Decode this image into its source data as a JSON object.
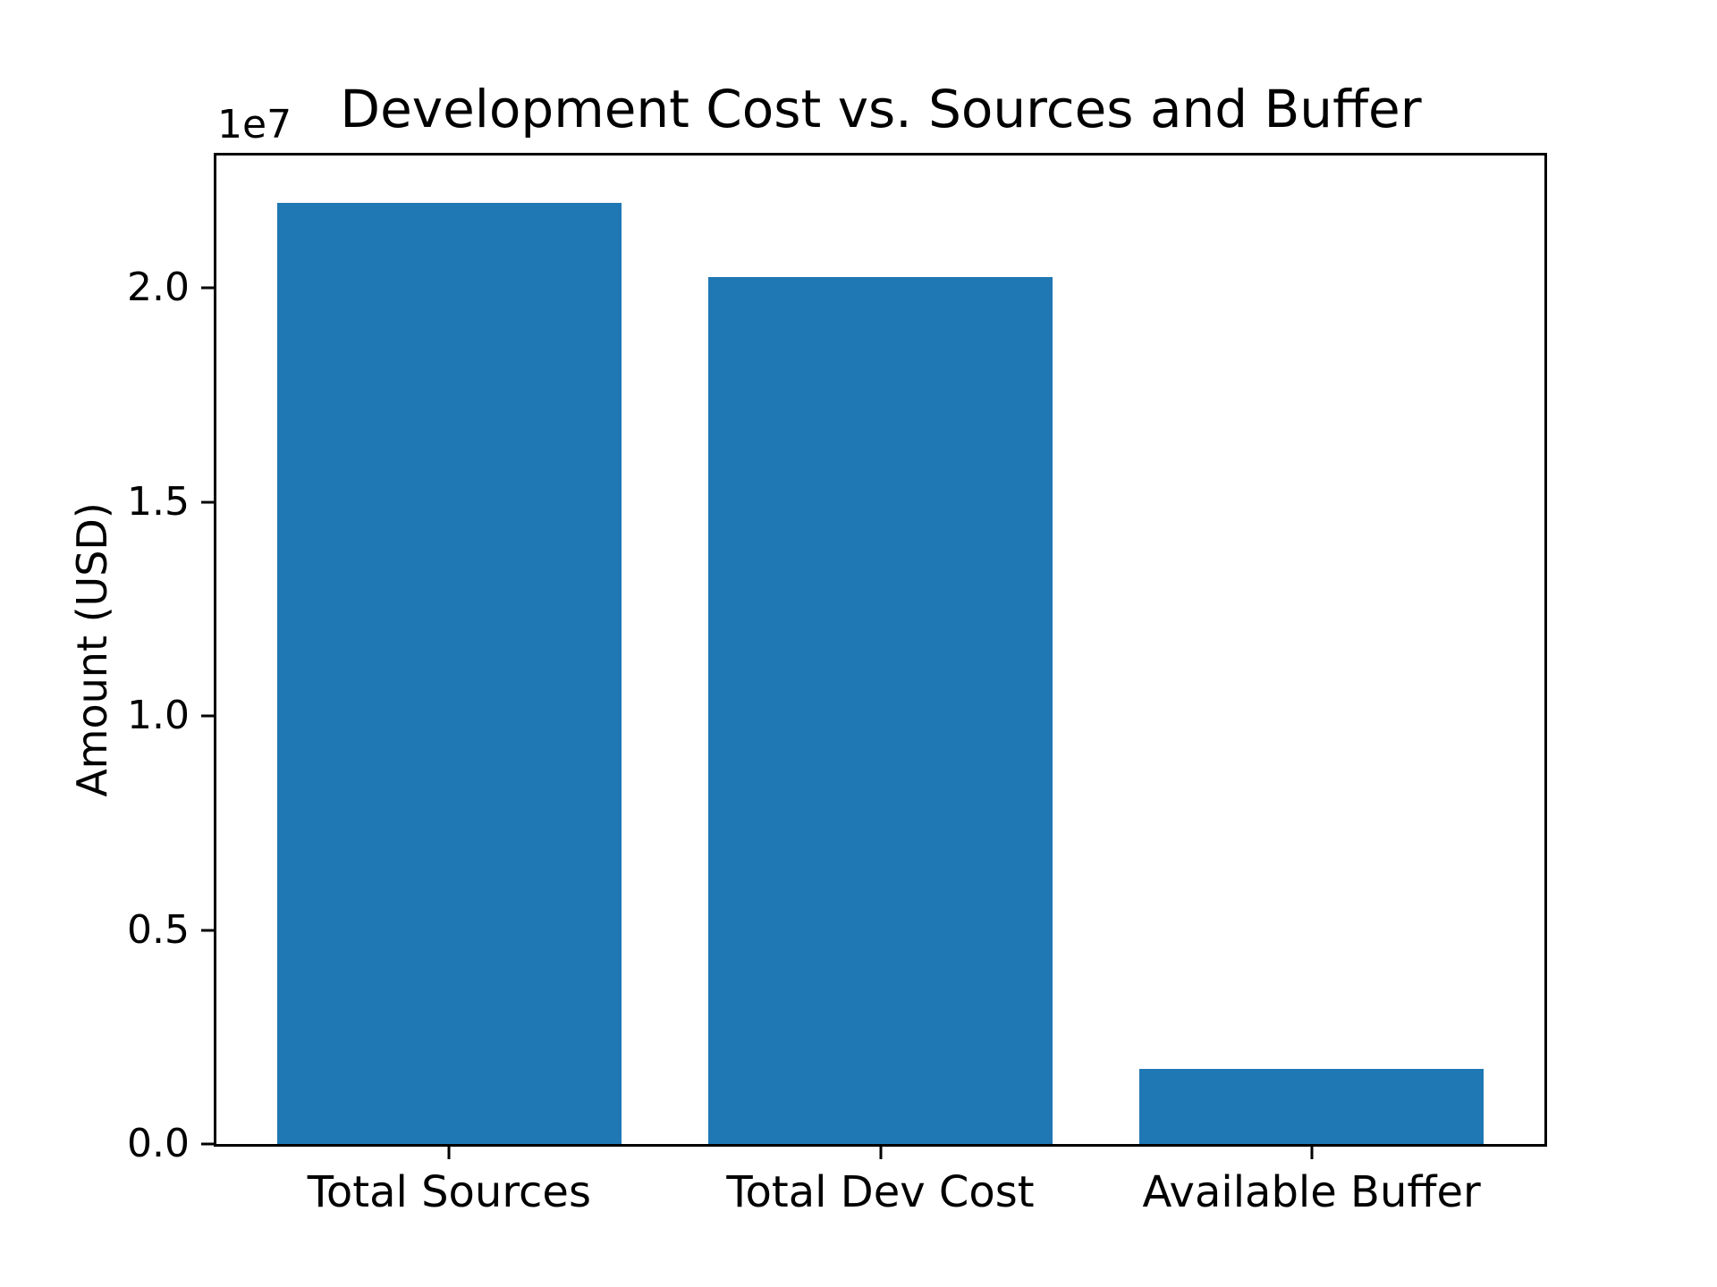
{
  "chart_data": {
    "type": "bar",
    "title": "Development Cost vs. Sources and Buffer",
    "categories": [
      "Total Sources",
      "Total Dev Cost",
      "Available Buffer"
    ],
    "values": [
      22000000,
      20250000,
      1750000
    ],
    "xlabel": "",
    "ylabel": "Amount (USD)",
    "offset_text": "1e7",
    "ylim": [
      0,
      23100000
    ],
    "xlim": [
      -0.54,
      2.54
    ],
    "bar_width": 0.8,
    "yticks": [
      0,
      5000000,
      10000000,
      15000000,
      20000000
    ],
    "ytick_labels": [
      "0.0",
      "0.5",
      "1.0",
      "1.5",
      "2.0"
    ],
    "bar_color": "#1f77b4",
    "axis_color": "#000000",
    "background_color": "#ffffff",
    "grid": false,
    "legend": null
  }
}
